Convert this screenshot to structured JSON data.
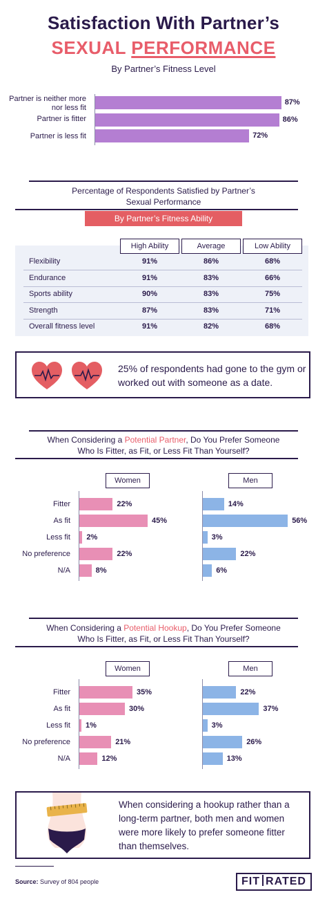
{
  "header": {
    "title_line1": "Satisfaction With Partner’s",
    "title_line2_a": "SEXUAL ",
    "title_line2_b": "PERFORMANCE",
    "subtitle": "By Partner’s Fitness Level"
  },
  "colors": {
    "navy": "#2a1a4a",
    "coral": "#e85d6a",
    "purple_bar": "#b47ed2",
    "pink_bar": "#e88fb5",
    "blue_bar": "#8cb4e6",
    "table_bg": "#eef1f8"
  },
  "chart_data": [
    {
      "type": "bar",
      "orientation": "horizontal",
      "categories": [
        "Partner is neither more nor less fit",
        "Partner is fitter",
        "Partner is less fit"
      ],
      "values": [
        87,
        86,
        72
      ],
      "labels": [
        "87%",
        "86%",
        "72%"
      ],
      "xlim": [
        0,
        100
      ]
    },
    {
      "type": "table",
      "title_line1": "Percentage of Respondents Satisfied by Partner’s",
      "title_line2": "Sexual Performance",
      "badge": "By Partner’s Fitness Ability",
      "columns": [
        "High Ability",
        "Average",
        "Low Ability"
      ],
      "rows": [
        {
          "label": "Flexibility",
          "values": [
            "91%",
            "86%",
            "68%"
          ]
        },
        {
          "label": "Endurance",
          "values": [
            "91%",
            "83%",
            "66%"
          ]
        },
        {
          "label": "Sports ability",
          "values": [
            "90%",
            "83%",
            "75%"
          ]
        },
        {
          "label": "Strength",
          "values": [
            "87%",
            "83%",
            "71%"
          ]
        },
        {
          "label": "Overall fitness level",
          "values": [
            "91%",
            "82%",
            "68%"
          ]
        }
      ]
    },
    {
      "type": "bar",
      "orientation": "horizontal",
      "title_line1_a": "When Considering a ",
      "title_line1_hl": "Potential Partner",
      "title_line1_b": ", Do You Prefer Someone",
      "title_line2": "Who Is Fitter, as Fit, or Less Fit Than Yourself?",
      "categories": [
        "Fitter",
        "As fit",
        "Less fit",
        "No preference",
        "N/A"
      ],
      "series": [
        {
          "name": "Women",
          "values": [
            22,
            45,
            2,
            22,
            8
          ],
          "labels": [
            "22%",
            "45%",
            "2%",
            "22%",
            "8%"
          ]
        },
        {
          "name": "Men",
          "values": [
            14,
            56,
            3,
            22,
            6
          ],
          "labels": [
            "14%",
            "56%",
            "3%",
            "22%",
            "6%"
          ]
        }
      ]
    },
    {
      "type": "bar",
      "orientation": "horizontal",
      "title_line1_a": "When Considering a ",
      "title_line1_hl": "Potential Hookup",
      "title_line1_b": ", Do You Prefer Someone",
      "title_line2": "Who Is Fitter, as Fit, or Less Fit Than Yourself?",
      "categories": [
        "Fitter",
        "As fit",
        "Less fit",
        "No preference",
        "N/A"
      ],
      "series": [
        {
          "name": "Women",
          "values": [
            35,
            30,
            1,
            21,
            12
          ],
          "labels": [
            "35%",
            "30%",
            "1%",
            "21%",
            "12%"
          ]
        },
        {
          "name": "Men",
          "values": [
            22,
            37,
            3,
            26,
            13
          ],
          "labels": [
            "22%",
            "37%",
            "3%",
            "26%",
            "13%"
          ]
        }
      ]
    }
  ],
  "callouts": {
    "gym_date": "25% of respondents had gone to the gym or worked out with someone as a date.",
    "hookup_line1": "When considering a hookup rather than a",
    "hookup_line2": "long-term partner, both men and women",
    "hookup_line3": "were more likely to prefer someone fitter",
    "hookup_line4": "than themselves."
  },
  "footer": {
    "source_label": "Source:",
    "source_text": " Survey of 804 people",
    "logo_left": "FIT",
    "logo_right": "RATED"
  },
  "icons": [
    "heart-pulse-icon",
    "heart-pulse-icon",
    "measuring-tape-torso-icon"
  ]
}
